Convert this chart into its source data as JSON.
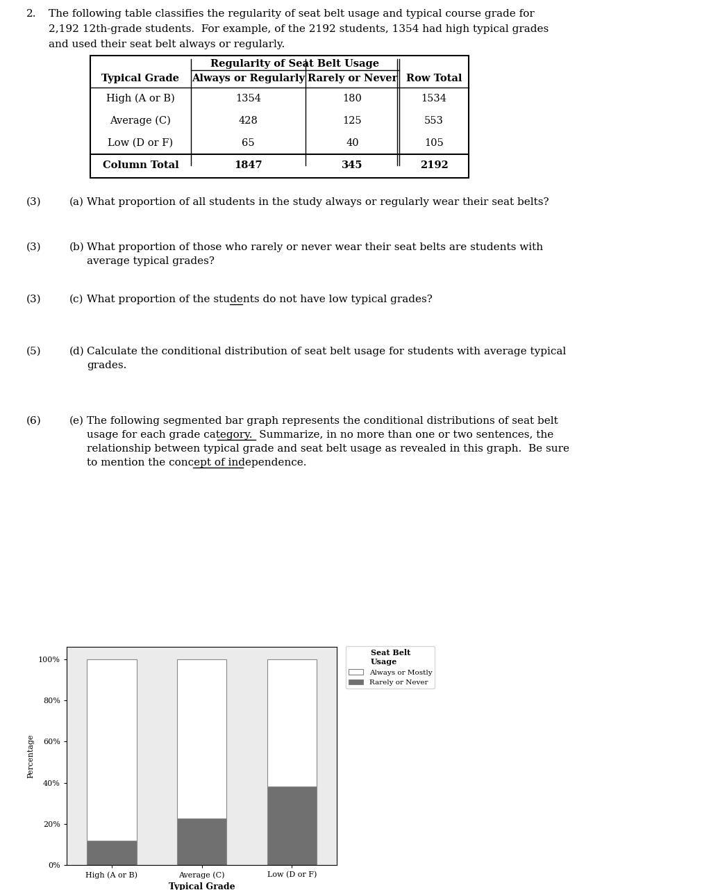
{
  "problem_number": "2.",
  "intro_lines": [
    "The following table classifies the regularity of seat belt usage and typical course grade for",
    "2,192 12th-grade students.  For example, of the 2192 students, 1354 had high typical grades",
    "and used their seat belt always or regularly."
  ],
  "table": {
    "col_header_main": "Regularity of Seat Belt Usage",
    "col_headers": [
      "Typical Grade",
      "Always or Regularly",
      "Rarely or Never",
      "Row Total"
    ],
    "rows": [
      [
        "High (A or B)",
        "1354",
        "180",
        "1534"
      ],
      [
        "Average (C)",
        "428",
        "125",
        "553"
      ],
      [
        "Low (D or F)",
        "65",
        "40",
        "105"
      ],
      [
        "Column Total",
        "1847",
        "345",
        "2192"
      ]
    ]
  },
  "bar_chart": {
    "categories": [
      "High (A or B)",
      "Average (C)",
      "Low (D or F)"
    ],
    "rarely_never_pct": [
      11.74,
      22.61,
      38.1
    ],
    "always_mostly_pct": [
      88.26,
      77.39,
      61.9
    ],
    "bar_color_always": "#ffffff",
    "bar_color_rarely": "#707070",
    "bar_edge_color": "#888888",
    "xlabel": "Typical Grade",
    "ylabel": "Percentage",
    "legend_title": "Seat Belt\nUsage",
    "legend_labels": [
      "Always or Mostly",
      "Rarely or Never"
    ],
    "yticks": [
      0,
      20,
      40,
      60,
      80,
      100
    ],
    "background_color": "#ebebeb"
  },
  "page_bg": "#ffffff",
  "text_color": "#000000",
  "font_size_body": 11,
  "font_size_table": 10.5
}
